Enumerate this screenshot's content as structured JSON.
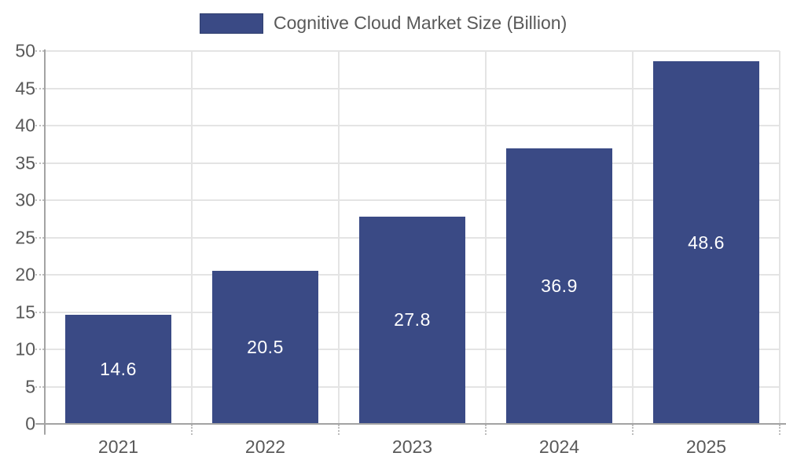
{
  "legend": {
    "label": "Cognitive Cloud Market Size (Billion)"
  },
  "colors": {
    "bar": "#3A4A85",
    "bar_border": "#31406F",
    "axis_line": "#A3A3A3",
    "gridline": "#E4E4E4",
    "tick": "#BDBDBD",
    "tick_label": "#595959",
    "data_label": "#FFFFFF",
    "background": "#FFFFFF"
  },
  "chart_data": {
    "type": "bar",
    "title": "Cognitive Cloud Market Size (Billion)",
    "categories": [
      "2021",
      "2022",
      "2023",
      "2024",
      "2025"
    ],
    "values": [
      14.6,
      20.5,
      27.8,
      36.9,
      48.6
    ],
    "bar_labels": [
      "14.6",
      "20.5",
      "27.8",
      "36.9",
      "48.6"
    ],
    "series": [
      {
        "name": "Cognitive Cloud Market Size (Billion)",
        "values": [
          14.6,
          20.5,
          27.8,
          36.9,
          48.6
        ]
      }
    ],
    "xlabel": "",
    "ylabel": "",
    "ylim": [
      0,
      50
    ],
    "yticks": [
      0,
      5,
      10,
      15,
      20,
      25,
      30,
      35,
      40,
      45,
      50
    ],
    "grid": true,
    "legend_position": "top-center"
  }
}
